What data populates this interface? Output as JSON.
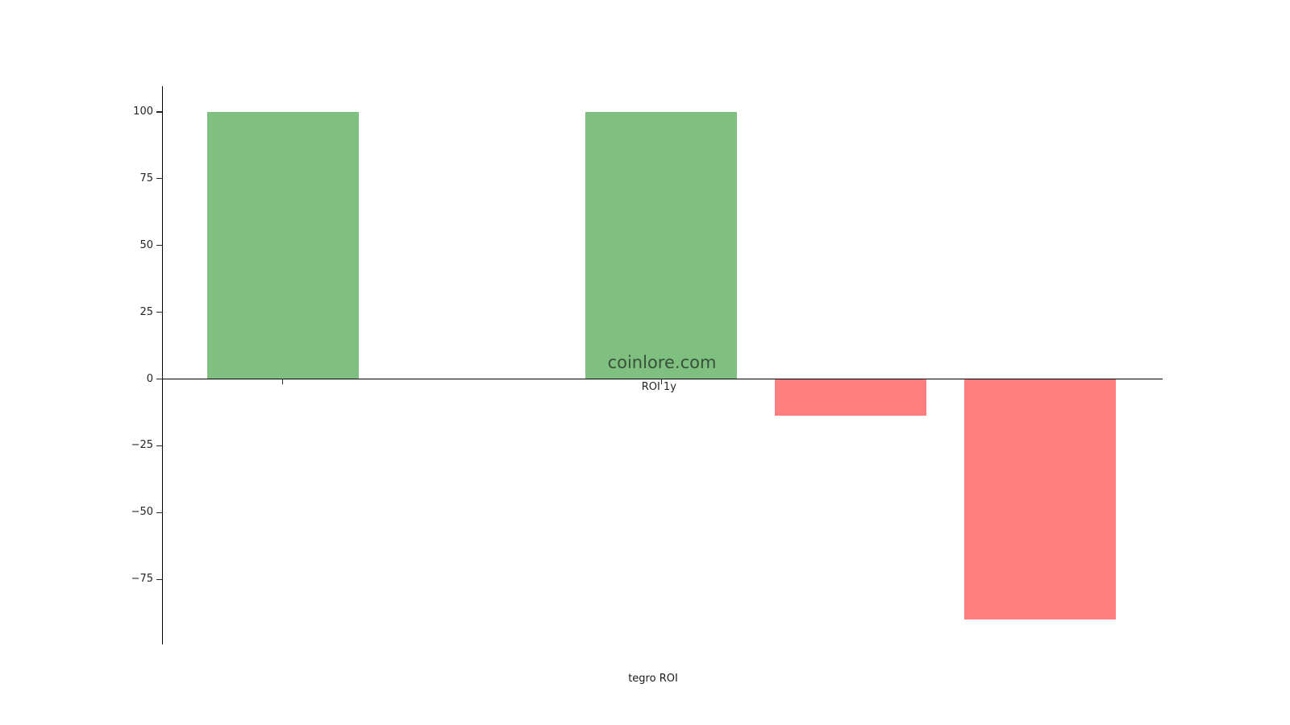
{
  "watermark": {
    "text": "coinlore.com"
  },
  "chart_data": {
    "type": "bar",
    "title": "tegro ROI",
    "watermark": "coinlore.com",
    "categories": [
      "",
      "",
      "ROI 1y",
      "",
      ""
    ],
    "values": [
      100,
      null,
      100,
      -13.7,
      -89.9
    ],
    "positive_color": "#7fbf7f",
    "negative_color": "#ff7f7f",
    "yticks": [
      100,
      75,
      50,
      25,
      0,
      -25,
      -50,
      -75
    ],
    "ylim": [
      -99.4,
      109.5
    ],
    "x_ticks_visible": [
      0,
      2
    ],
    "grid": false,
    "legend": "none",
    "axis_color": "#000000",
    "label_color": "#262626"
  }
}
